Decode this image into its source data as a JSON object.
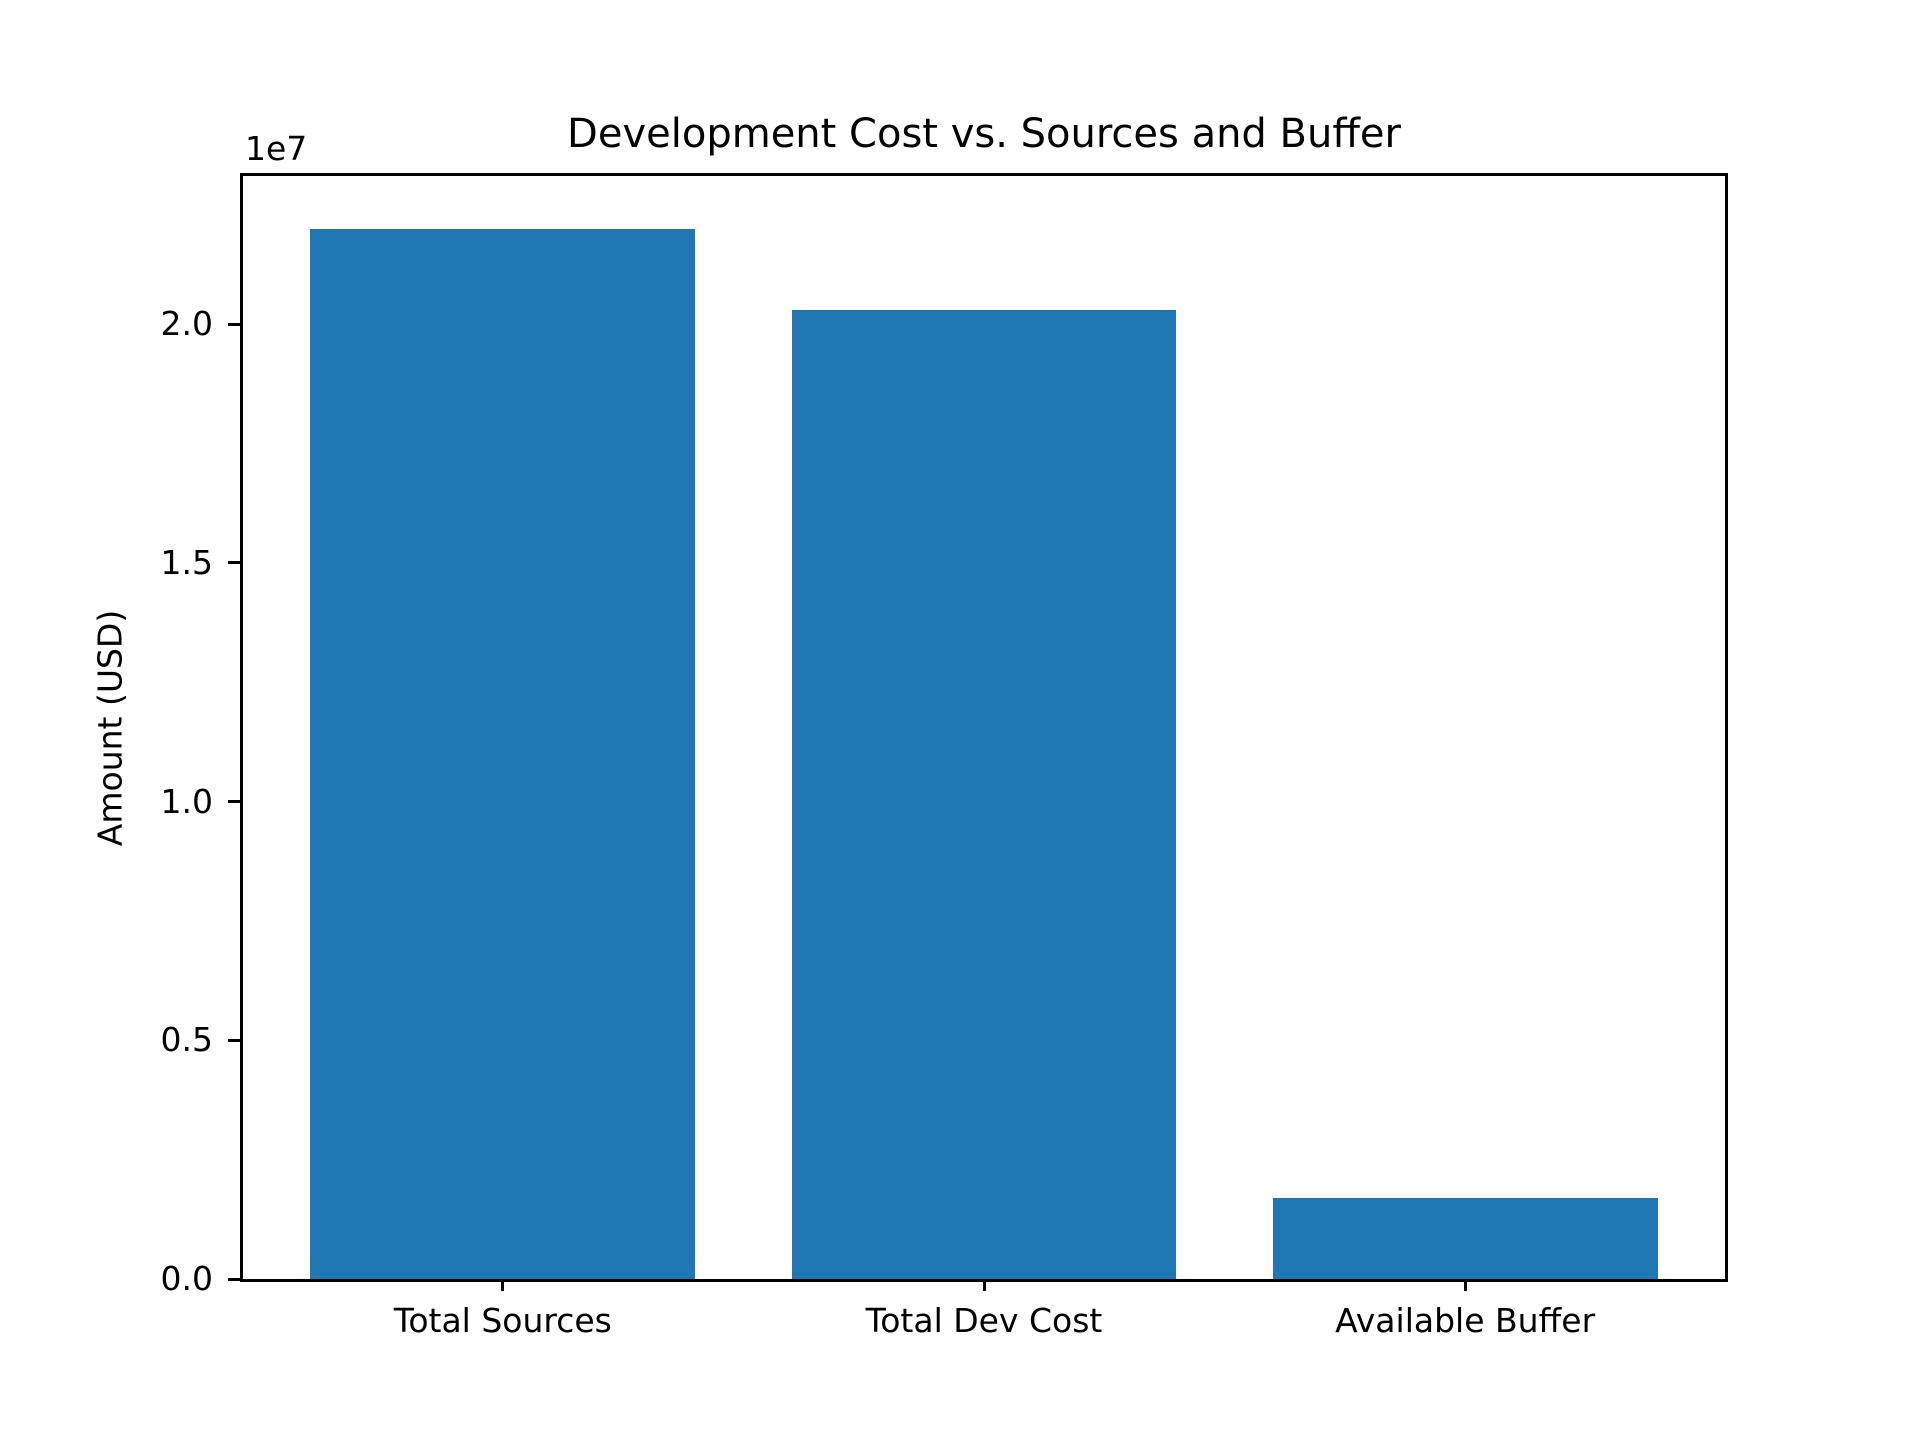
{
  "chart_data": {
    "type": "bar",
    "title": "Development Cost vs. Sources and Buffer",
    "xlabel": "",
    "ylabel": "Amount (USD)",
    "offset_text": "1e7",
    "categories": [
      "Total Sources",
      "Total Dev Cost",
      "Available Buffer"
    ],
    "values": [
      22000000,
      20300000,
      1700000
    ],
    "ylim": [
      0,
      23100000
    ],
    "yticks": [
      0,
      5000000,
      10000000,
      15000000,
      20000000
    ],
    "ytick_labels": [
      "0.0",
      "0.5",
      "1.0",
      "1.5",
      "2.0"
    ],
    "bar_color": "#1f77b4",
    "grid": false,
    "legend": "none"
  }
}
